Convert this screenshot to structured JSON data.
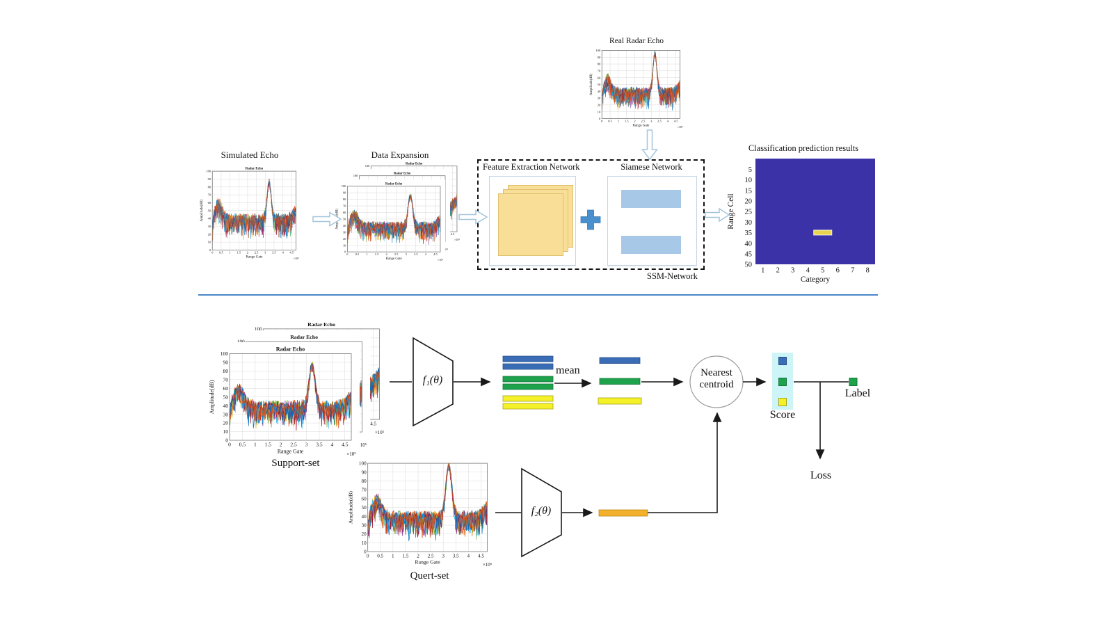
{
  "texts": {
    "simulated_title": "Simulated Echo",
    "data_expansion_title": "Data Expansion",
    "real_echo_title": "Real Radar Echo",
    "feature_network": "Feature Extraction Network",
    "siamese_network": "Siamese Network",
    "ssm_network": "SSM-Network",
    "classification_title": "Classification prediction results",
    "support_set": "Support-set",
    "query_set": "Quert-set",
    "f1": "f₁(θ)",
    "f2": "f₂(θ)",
    "mean": "mean",
    "nearest_line1": "Nearest",
    "nearest_line2": "centroid",
    "score": "Score",
    "label": "Label",
    "loss": "Loss"
  },
  "radar_axes": {
    "inner_title": "Radar Echo",
    "ylabel": "Amplitude(dB)",
    "xlabel": "Range Gate",
    "exp": "×10⁵",
    "yticks": [
      0,
      10,
      20,
      30,
      40,
      50,
      60,
      70,
      80,
      90,
      100
    ],
    "xticks": [
      0,
      0.5,
      1,
      1.5,
      2,
      2.5,
      3,
      3.5,
      4,
      4.5
    ],
    "xmax": 4.75
  },
  "classification": {
    "title": "Classification prediction results",
    "ylabel": "Range Cell",
    "xlabel": "Category",
    "yticks": [
      5,
      10,
      15,
      20,
      25,
      30,
      35,
      40,
      45,
      50
    ],
    "xticks": [
      1,
      2,
      3,
      4,
      5,
      6,
      7,
      8
    ],
    "highlight": {
      "category": 5,
      "range_cell": 35
    }
  },
  "colors": {
    "trace_palette": [
      "#0072BD",
      "#D95319",
      "#EDB120",
      "#7E2F8E",
      "#77AC30",
      "#4DBEEE",
      "#A2142F"
    ],
    "heatmap_bg": "#3C32A8",
    "heatmap_mark": "#E8D44C",
    "heatmap_mark_border": "#F7F7E8",
    "bar_blue": "#3A6DB5",
    "bar_blue_border": "#27508C",
    "bar_green": "#1EA24C",
    "bar_green_border": "#14763A",
    "bar_yellow": "#F5F129",
    "bar_yellow_border": "#A8A616",
    "bar_orange": "#F2B02C",
    "bar_orange_border": "#BF8A14",
    "siamese_bar": "#A8C8E8",
    "feature_square": "#F8DE96",
    "feature_square_border": "#DFC070",
    "plus_sign": "#4A90CC",
    "hollow_arrow_stroke": "#A3C6DD",
    "score_bg": "#CDF4F6",
    "divider": "#4A86C8",
    "line": "#1A1A1A"
  },
  "chart_data": [
    {
      "type": "line",
      "id": "simulated_echo",
      "title": "Radar Echo",
      "outer_title": "Simulated Echo",
      "xlabel": "Range Gate",
      "ylabel": "Amplitude(dB)",
      "xlim": [
        0,
        4.75
      ],
      "ylim": [
        0,
        100
      ],
      "xticks": [
        0,
        0.5,
        1,
        1.5,
        2,
        2.5,
        3,
        3.5,
        4,
        4.5
      ],
      "yticks": [
        0,
        10,
        20,
        30,
        40,
        50,
        60,
        70,
        80,
        90,
        100
      ],
      "x_scale": "×10⁵",
      "series_desc": "many overlaid noisy echo traces, baseline 30–60 dB, bump ≈68 dB near x=0.4, main peak ≈91 dB at x≈3.2"
    },
    {
      "type": "line",
      "id": "data_expansion",
      "outer_title": "Data Expansion",
      "stack_count": 3,
      "title": "Radar Echo",
      "xlabel": "Range Gate",
      "ylabel": "Amplitude(dB)",
      "xlim": [
        0,
        4.75
      ],
      "ylim": [
        0,
        100
      ],
      "x_scale": "×10⁵",
      "series_desc": "three cascaded copies of the simulated Radar Echo plot"
    },
    {
      "type": "line",
      "id": "real_radar_echo",
      "outer_title": "Real Radar Echo",
      "xlabel": "Range Gate",
      "ylabel": "Amplitude(dB)",
      "xlim": [
        0,
        4.75
      ],
      "ylim": [
        0,
        100
      ],
      "x_scale": "×10⁵",
      "series_desc": "noisy measured echo traces, baseline 40–60 dB, peak 100 dB at x≈3.2"
    },
    {
      "type": "line",
      "id": "support_set",
      "outer_title": "Support-set",
      "stack_count": 3,
      "title": "Radar Echo",
      "xlabel": "Range Gate",
      "ylabel": "Amplitude(dB)",
      "xlim": [
        0,
        4.75
      ],
      "ylim": [
        0,
        100
      ],
      "x_scale": "×10⁵",
      "series_desc": "three cascaded Radar Echo plots, peak ≈92 dB at x≈3.2"
    },
    {
      "type": "line",
      "id": "query_set",
      "outer_title": "Quert-set",
      "xlabel": "Range Gate",
      "ylabel": "Amplitude(dB)",
      "xlim": [
        0,
        4.75
      ],
      "ylim": [
        0,
        100
      ],
      "x_scale": "×10⁵",
      "series_desc": "noisy echo traces, peak 100 dB at x≈3.25"
    },
    {
      "type": "heatmap",
      "id": "classification_prediction",
      "title": "Classification prediction results",
      "xlabel": "Category",
      "ylabel": "Range Cell",
      "xticks": [
        1,
        2,
        3,
        4,
        5,
        6,
        7,
        8
      ],
      "yticks": [
        5,
        10,
        15,
        20,
        25,
        30,
        35,
        40,
        45,
        50
      ],
      "background": "uniform deep purple",
      "highlight_cell": {
        "category": 5,
        "range_cell": 35,
        "color": "#E8D44C"
      }
    }
  ]
}
